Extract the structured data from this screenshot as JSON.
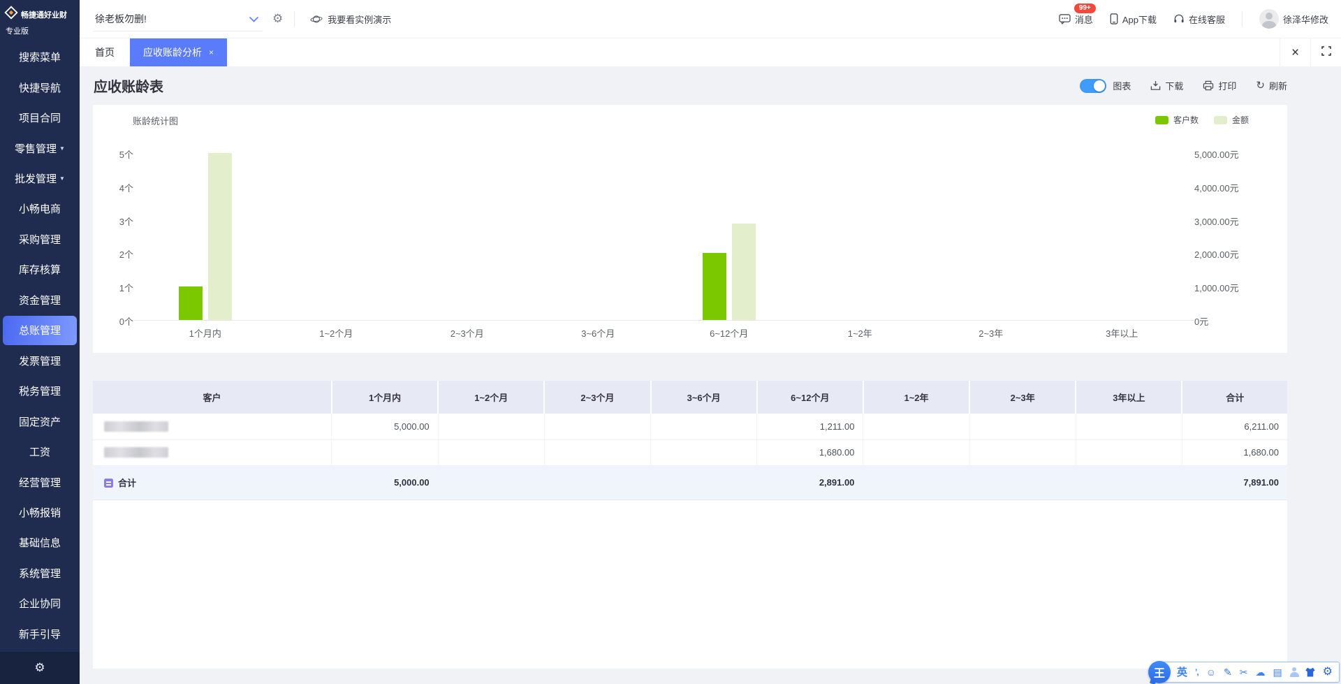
{
  "brand": {
    "name": "畅捷通好业财",
    "edition": "专业版"
  },
  "sidebar": {
    "items": [
      {
        "label": "搜索菜单"
      },
      {
        "label": "快捷导航"
      },
      {
        "label": "项目合同"
      },
      {
        "label": "零售管理",
        "caret": true
      },
      {
        "label": "批发管理",
        "caret": true
      },
      {
        "label": "小畅电商"
      },
      {
        "label": "采购管理"
      },
      {
        "label": "库存核算"
      },
      {
        "label": "资金管理"
      },
      {
        "label": "总账管理",
        "active": true
      },
      {
        "label": "发票管理"
      },
      {
        "label": "税务管理"
      },
      {
        "label": "固定资产"
      },
      {
        "label": "工资"
      },
      {
        "label": "经营管理"
      },
      {
        "label": "小畅报销"
      },
      {
        "label": "基础信息"
      },
      {
        "label": "系统管理"
      },
      {
        "label": "企业协同"
      },
      {
        "label": "新手引导"
      }
    ]
  },
  "topbar": {
    "company": "徐老板勿删!",
    "demo_label": "我要看实例演示",
    "messages_label": "消息",
    "messages_badge": "99+",
    "app_label": "App下载",
    "support_label": "在线客服",
    "user_name": "徐泽华修改"
  },
  "tabs": [
    {
      "label": "首页",
      "active": false
    },
    {
      "label": "应收账龄分析",
      "active": true,
      "closable": true
    }
  ],
  "page": {
    "title": "应收账龄表",
    "toggle_label": "图表",
    "toggle_on": true,
    "actions": [
      {
        "name": "download",
        "label": "下载"
      },
      {
        "name": "print",
        "label": "打印"
      },
      {
        "name": "refresh",
        "label": "刷新"
      }
    ]
  },
  "chart_data": {
    "type": "bar",
    "title": "账龄统计图",
    "categories": [
      "1个月内",
      "1~2个月",
      "2~3个月",
      "3~6个月",
      "6~12个月",
      "1~2年",
      "2~3年",
      "3年以上"
    ],
    "series": [
      {
        "name": "客户数",
        "axis": "left",
        "unit": "个",
        "color": "#7cc800",
        "values": [
          1,
          0,
          0,
          0,
          2,
          0,
          0,
          0
        ]
      },
      {
        "name": "金额",
        "axis": "right",
        "unit": "元",
        "color": "#e3efcc",
        "values": [
          5000,
          0,
          0,
          0,
          2891,
          0,
          0,
          0
        ]
      }
    ],
    "left_axis": {
      "max": 5,
      "ticks": [
        "5个",
        "4个",
        "3个",
        "2个",
        "1个",
        "0个"
      ]
    },
    "right_axis": {
      "max": 5000,
      "ticks": [
        "5,000.00元",
        "4,000.00元",
        "3,000.00元",
        "2,000.00元",
        "1,000.00元",
        "0元"
      ]
    },
    "grid": false,
    "legend_position": "top-right"
  },
  "table": {
    "columns": [
      "客户",
      "1个月内",
      "1~2个月",
      "2~3个月",
      "3~6个月",
      "6~12个月",
      "1~2年",
      "2~3年",
      "3年以上",
      "合计"
    ],
    "rows": [
      {
        "customer": "",
        "masked": true,
        "values": [
          "5,000.00",
          "",
          "",
          "",
          "1,211.00",
          "",
          "",
          "",
          "6,211.00"
        ]
      },
      {
        "customer": "",
        "masked": true,
        "values": [
          "",
          "",
          "",
          "",
          "1,680.00",
          "",
          "",
          "",
          "1,680.00"
        ]
      }
    ],
    "total": {
      "label": "合计",
      "values": [
        "5,000.00",
        "",
        "",
        "",
        "2,891.00",
        "",
        "",
        "",
        "7,891.00"
      ]
    }
  },
  "ime": {
    "char": "王",
    "mode": "英",
    "punct": "’,",
    "glyphs": {
      "emoji": "☺",
      "pencil": "✎",
      "scissors": "✂",
      "cloud": "☁",
      "keyboard": "▤",
      "gear": "⚙"
    }
  },
  "colors": {
    "accent": "#5b7cfa",
    "sidebar_bg": "#1f2c50",
    "toggle_on": "#3f9bfc",
    "badge_red": "#f5483c",
    "bar_customers": "#7cc800",
    "bar_amount": "#e3efcc",
    "table_header_bg": "#e7eaf5",
    "total_row_bg": "#f0f5fc"
  }
}
